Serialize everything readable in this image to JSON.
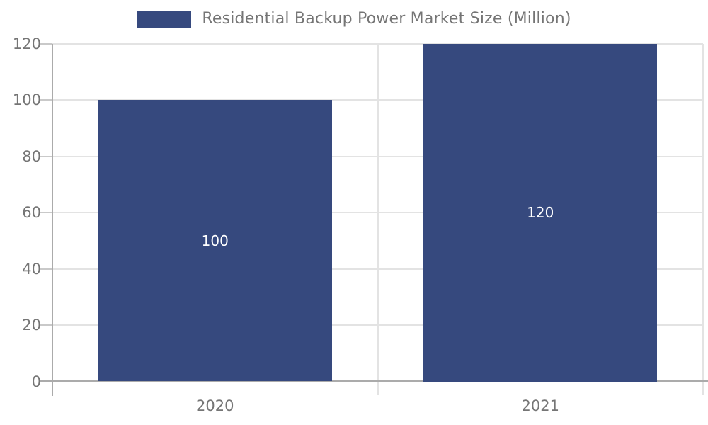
{
  "chart_data": {
    "type": "bar",
    "title": "Residential Backup Power Market Size (Million)",
    "legend_entries": [
      "Residential Backup Power Market Size (Million)"
    ],
    "legend_position": "top-center",
    "categories": [
      "2020",
      "2021"
    ],
    "series": [
      {
        "name": "Residential Backup Power Market Size (Million)",
        "values": [
          100,
          120
        ],
        "data_labels": [
          "100",
          "120"
        ]
      }
    ],
    "xlabel": "",
    "ylabel": "",
    "ylim": [
      0,
      120
    ],
    "yticks": [
      0,
      20,
      40,
      60,
      80,
      100,
      120
    ],
    "grid": true,
    "colors": {
      "bar": "#36497E",
      "axis": "#ababab",
      "gridline": "#e3e3e3",
      "tick_mark": "#c9c9c9",
      "tick_label_text": "#757575",
      "legend_text": "#757575",
      "bar_label_text": "#ffffff",
      "background": "#ffffff"
    }
  }
}
